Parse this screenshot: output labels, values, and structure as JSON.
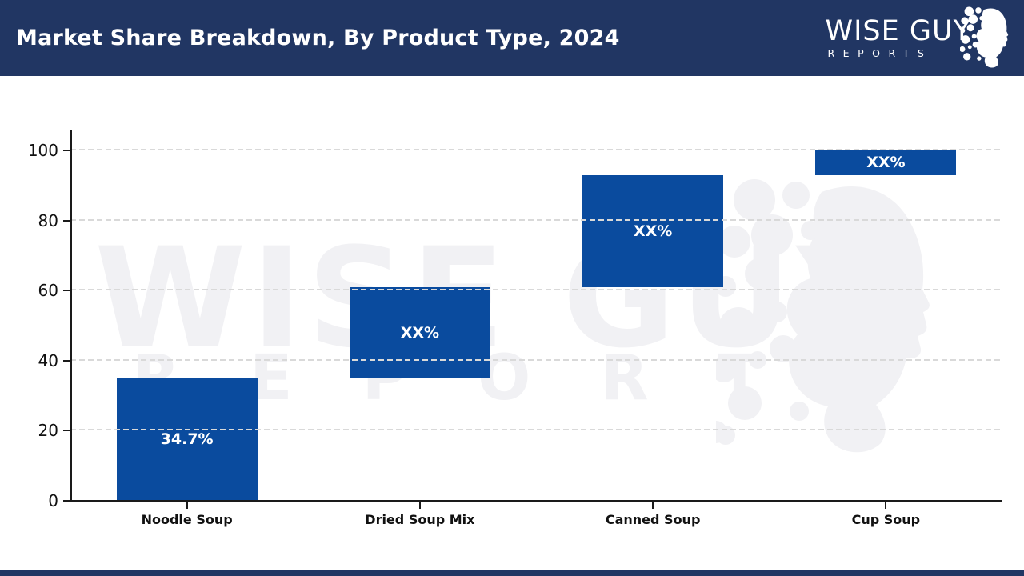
{
  "header": {
    "title": "Market Share Breakdown, By Product Type, 2024",
    "logo_line1": "WISE GUY",
    "logo_line2": "REPORTS"
  },
  "watermark": {
    "line1": "WISE GUY",
    "line2": "R E P O R T S"
  },
  "chart_data": {
    "type": "bar",
    "subtype": "waterfall-floating-bars",
    "title": "Market Share Breakdown, By Product Type, 2024",
    "categories": [
      "Noodle Soup",
      "Dried Soup Mix",
      "Canned Soup",
      "Cup Soup"
    ],
    "segments": [
      {
        "start": 0,
        "end": 34.7
      },
      {
        "start": 34.7,
        "end": 60.7
      },
      {
        "start": 60.7,
        "end": 92.7
      },
      {
        "start": 92.7,
        "end": 100
      }
    ],
    "bar_labels": [
      "34.7%",
      "XX%",
      "XX%",
      "XX%"
    ],
    "yticks": [
      0,
      20,
      40,
      60,
      80,
      100
    ],
    "ylim": [
      0,
      105.5
    ],
    "xlabel": "",
    "ylabel": "",
    "grid": "horizontal-dashed",
    "legend": "none"
  },
  "colors": {
    "header_bg": "#213663",
    "footer_bg": "#213663",
    "bar": "#0a4b9e",
    "bar_label": "#ffffff",
    "grid": "#d9d9d9",
    "axis": "#1a1a1a",
    "watermark": "#f1f1f4"
  }
}
